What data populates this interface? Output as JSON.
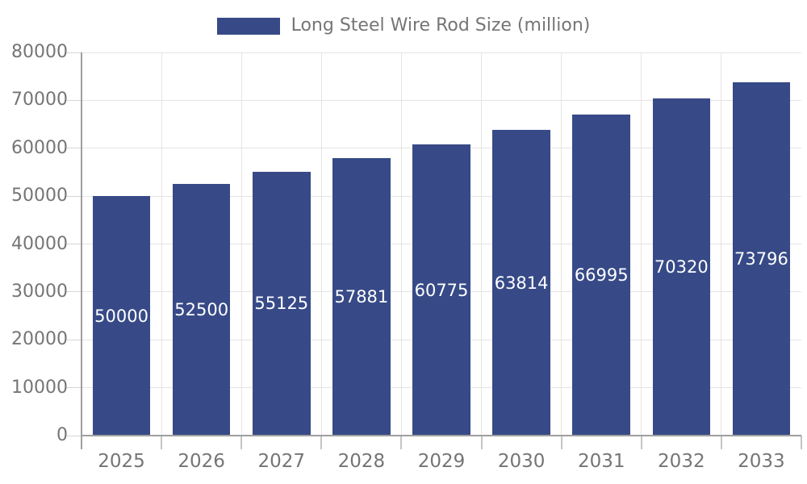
{
  "legend": {
    "label": "Long Steel Wire Rod Size (million)"
  },
  "colors": {
    "bar": "#374a87",
    "axis_text": "#757575",
    "value_label_text": "#ffffff",
    "grid_line": "#e4e4e4",
    "axis_line": "#9f9f9f",
    "tick_mark": "#c4c4c4"
  },
  "chart_data": {
    "type": "bar",
    "title": "",
    "xlabel": "",
    "ylabel": "",
    "categories": [
      "2025",
      "2026",
      "2027",
      "2028",
      "2029",
      "2030",
      "2031",
      "2032",
      "2033"
    ],
    "series": [
      {
        "name": "Long Steel Wire Rod Size (million)",
        "values": [
          50000,
          52500,
          55125,
          57881,
          60775,
          63814,
          66995,
          70320,
          73796
        ]
      }
    ],
    "value_labels_shown": true,
    "value_label_position": "inside-center",
    "ylim": [
      0,
      80000
    ],
    "y_tick_step": 10000,
    "y_tick_labels": [
      "0",
      "10000",
      "20000",
      "30000",
      "40000",
      "50000",
      "60000",
      "70000",
      "80000"
    ],
    "grid": true,
    "legend_position": "top-center"
  }
}
